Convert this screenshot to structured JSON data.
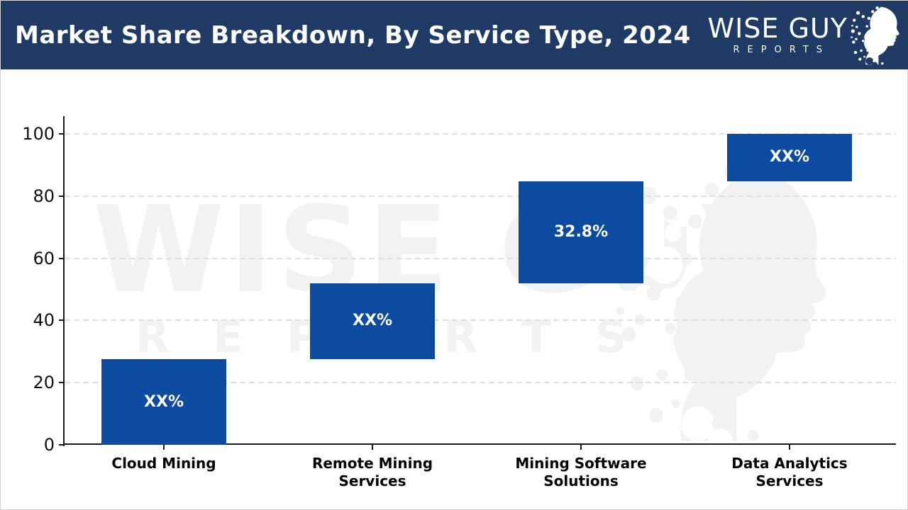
{
  "header": {
    "title": "Market Share Breakdown, By Service Type, 2024",
    "logo": {
      "line1": "WISE GUY",
      "line2": "REPORTS"
    }
  },
  "watermark": {
    "line1": "WISE GUY",
    "line2": "R E P O R T S"
  },
  "colors": {
    "header_bg": "#203a66",
    "bar": "#0c4ba0",
    "bar_label": "#ffffff",
    "watermark": "#f2f2f2",
    "grid": "#e0e0e0",
    "axis": "#1a1a1a"
  },
  "chart_data": {
    "type": "bar",
    "variant": "floating-waterfall",
    "title": "Market Share Breakdown, By Service Type, 2024",
    "categories": [
      {
        "lines": [
          "Cloud Mining"
        ]
      },
      {
        "lines": [
          "Remote Mining",
          "Services"
        ]
      },
      {
        "lines": [
          "Mining Software",
          "Solutions"
        ]
      },
      {
        "lines": [
          "Data Analytics",
          "Services"
        ]
      }
    ],
    "segments": [
      {
        "start": 0,
        "end": 27.5,
        "label": "XX%"
      },
      {
        "start": 27.5,
        "end": 52,
        "label": "XX%"
      },
      {
        "start": 52,
        "end": 84.8,
        "label": "32.8%"
      },
      {
        "start": 84.8,
        "end": 100,
        "label": "XX%"
      }
    ],
    "xlabel": "",
    "ylabel": "",
    "ylim": [
      0,
      100
    ],
    "yticks": [
      0,
      20,
      40,
      60,
      80,
      100
    ],
    "grid": "horizontal-dashed",
    "legend": "none"
  }
}
